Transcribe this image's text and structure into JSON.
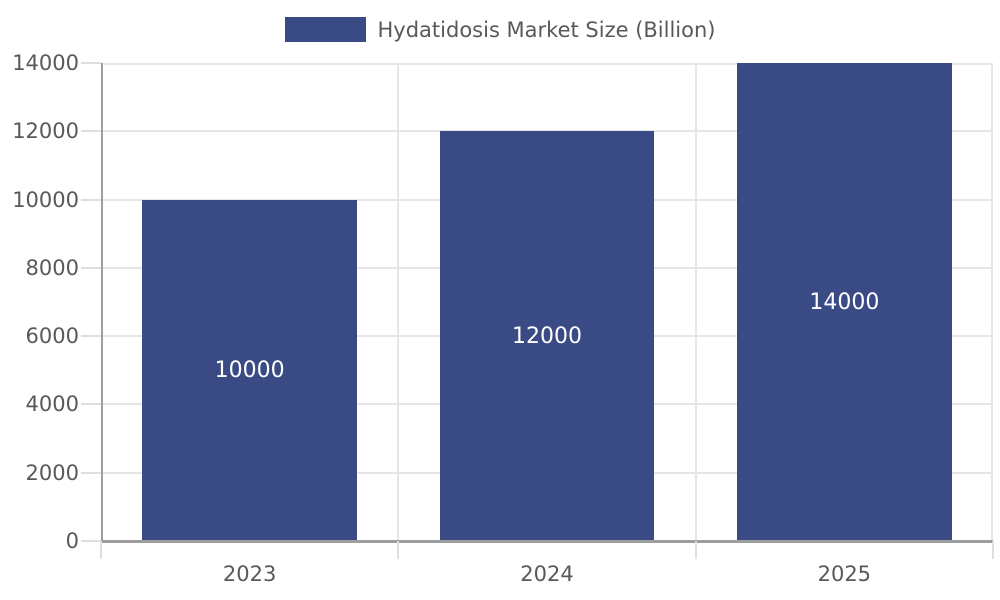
{
  "legend": {
    "label": "Hydatidosis Market Size (Billion)"
  },
  "colors": {
    "bar": "#394A85",
    "bar_label": "#FFFFFF",
    "grid": "#E6E6E6",
    "tick": "#DFDFDF",
    "axis": "#9E9E9E",
    "tick_label": "#595959",
    "background": "#FFFFFF"
  },
  "chart_data": {
    "type": "bar",
    "title": "",
    "series_name": "Hydatidosis Market Size (Billion)",
    "categories": [
      "2023",
      "2024",
      "2025"
    ],
    "values": [
      10000,
      12000,
      14000
    ],
    "bar_labels": [
      "10000",
      "12000",
      "14000"
    ],
    "xlabel": "",
    "ylabel": "",
    "ylim": [
      0,
      14000
    ],
    "yticks": [
      0,
      2000,
      4000,
      6000,
      8000,
      10000,
      12000,
      14000
    ],
    "grid": true,
    "legend_position": "top-center"
  }
}
